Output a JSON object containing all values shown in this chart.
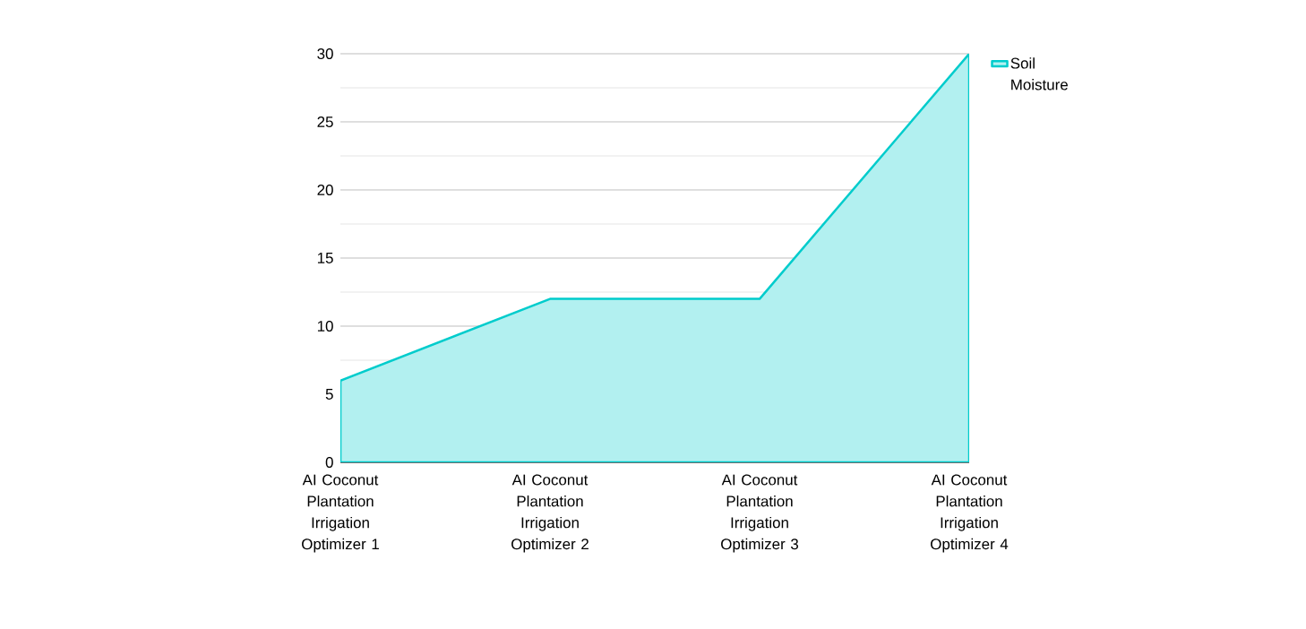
{
  "chart_data": {
    "type": "area",
    "categories": [
      "AI Coconut Plantation Irrigation Optimizer 1",
      "AI Coconut Plantation Irrigation Optimizer 2",
      "AI Coconut Plantation Irrigation Optimizer 3",
      "AI Coconut Plantation Irrigation Optimizer 4"
    ],
    "series": [
      {
        "name": "Soil Moisture",
        "color": "#00cccc",
        "values": [
          6,
          12,
          12,
          30
        ]
      }
    ],
    "ylim": [
      0,
      30
    ],
    "yticks": [
      0,
      5,
      10,
      15,
      20,
      25,
      30
    ],
    "grid": "y",
    "legend": "top right"
  }
}
